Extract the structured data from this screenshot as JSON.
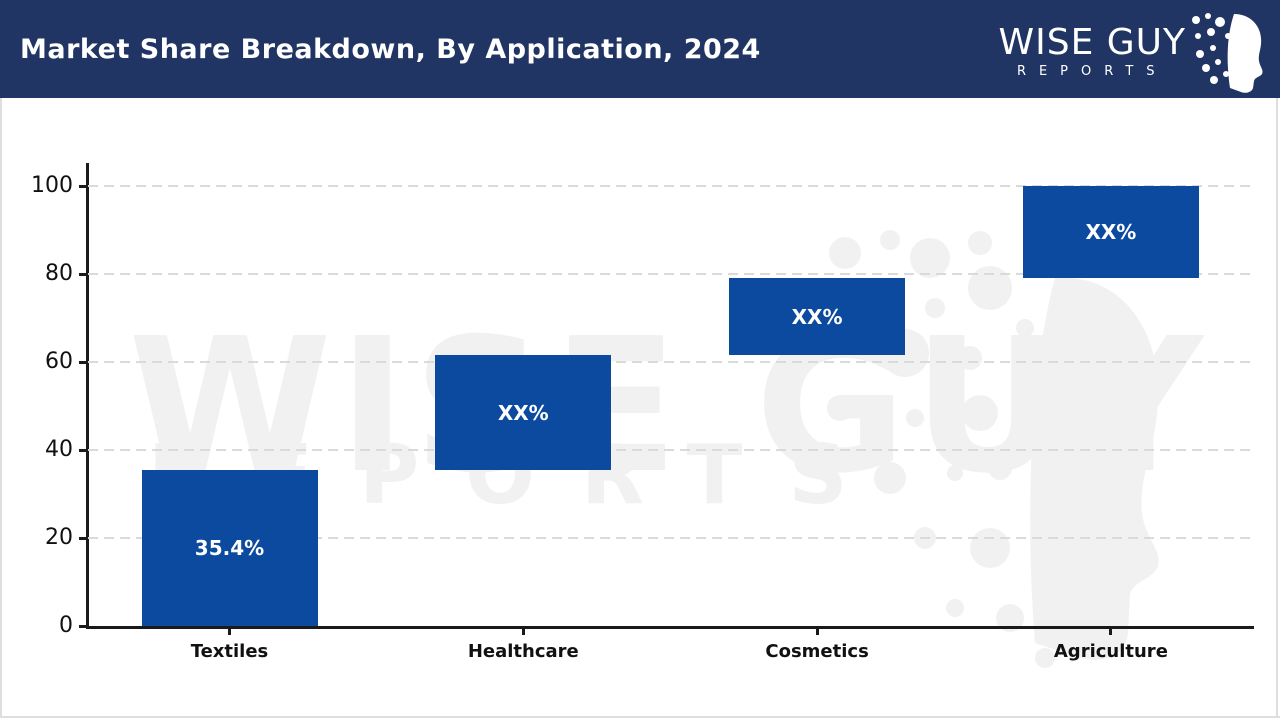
{
  "header": {
    "title": "Market Share Breakdown, By Application, 2024",
    "logo": {
      "line1": "WISE GUY",
      "line2": "REPORTS"
    }
  },
  "watermark": {
    "line1": "WISE GUY",
    "line2": "REPORTS"
  },
  "colors": {
    "header_bg": "#203564",
    "bar": "#0b4a9e",
    "grid": "#dadada",
    "axis": "#1a1a1a",
    "watermark": "#f1f1f1"
  },
  "chart_data": {
    "type": "bar",
    "subtype": "waterfall",
    "title": "Market Share Breakdown, By Application, 2024",
    "xlabel": "",
    "ylabel": "",
    "categories": [
      "Textiles",
      "Healthcare",
      "Cosmetics",
      "Agriculture"
    ],
    "segments": [
      {
        "category": "Textiles",
        "start": 0,
        "end": 35.4,
        "label": "35.4%"
      },
      {
        "category": "Healthcare",
        "start": 35.4,
        "end": 61.5,
        "label": "XX%"
      },
      {
        "category": "Cosmetics",
        "start": 61.5,
        "end": 79.0,
        "label": "XX%"
      },
      {
        "category": "Agriculture",
        "start": 79.0,
        "end": 100,
        "label": "XX%"
      }
    ],
    "yticks": [
      0,
      20,
      40,
      60,
      80,
      100
    ],
    "ylim": [
      0,
      105
    ],
    "grid": "horizontal-dashed",
    "legend": "none"
  }
}
